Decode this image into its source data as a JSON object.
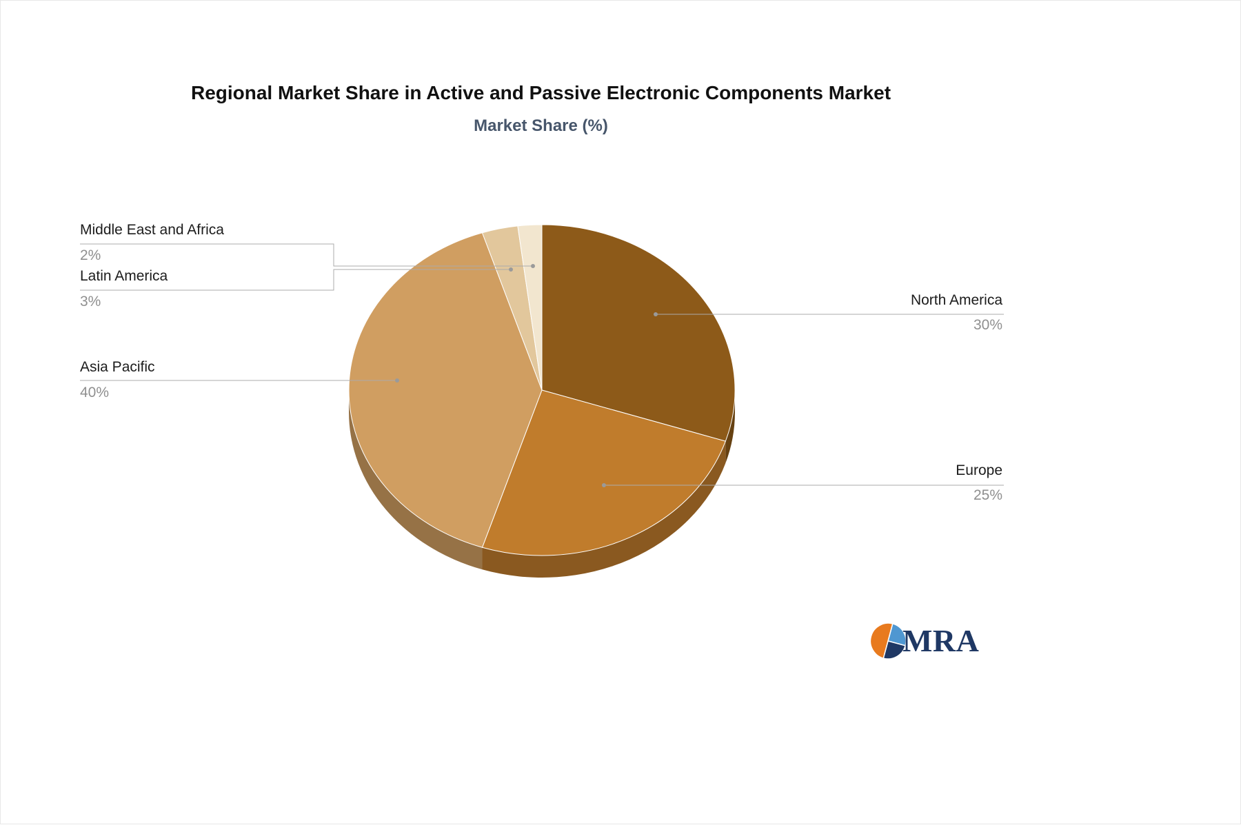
{
  "chart_data": {
    "type": "pie",
    "title": "Regional Market Share in Active and Passive Electronic Components Market",
    "subtitle": "Market Share (%)",
    "unit": "%",
    "direction": "clockwise",
    "start_angle_deg": 0,
    "legend": "none",
    "label_style": "callout-lines",
    "effect": "3d-depth",
    "slices": [
      {
        "label": "North America",
        "value": 30,
        "display": "30%",
        "color": "#8d5a19"
      },
      {
        "label": "Europe",
        "value": 25,
        "display": "25%",
        "color": "#c07c2c"
      },
      {
        "label": "Asia Pacific",
        "value": 40,
        "display": "40%",
        "color": "#d09e61"
      },
      {
        "label": "Latin America",
        "value": 3,
        "display": "3%",
        "color": "#e2c79c"
      },
      {
        "label": "Middle East and Africa",
        "value": 2,
        "display": "2%",
        "color": "#f2e6cf"
      }
    ]
  },
  "logo": {
    "text": "MRA",
    "colors": {
      "orange": "#e87a1e",
      "light_blue": "#4f97d1",
      "navy": "#1f3864"
    }
  },
  "style": {
    "leader_line_color": "#ababab",
    "dot_color": "#9a9a9a",
    "label_color": "#1c1c1c",
    "value_color": "#8f8f8f",
    "background": "#ffffff"
  }
}
